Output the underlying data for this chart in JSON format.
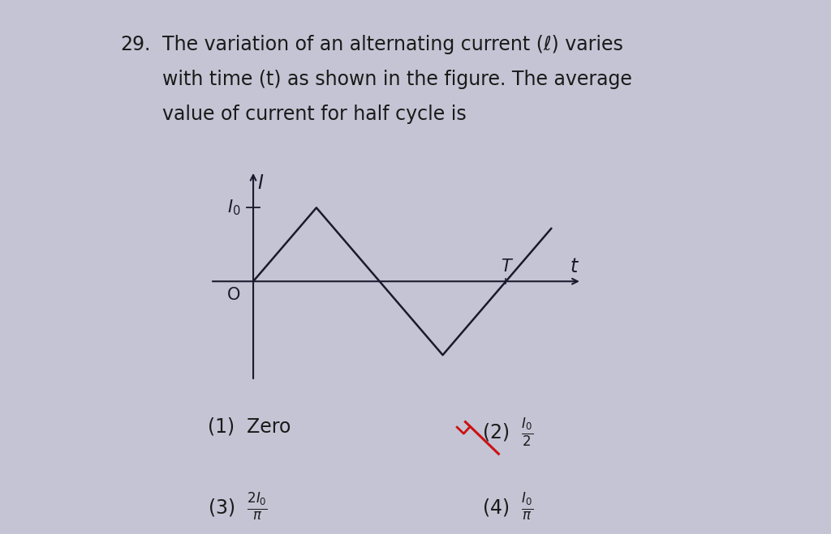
{
  "fig_bg": "#c4c4d4",
  "question_number": "29.",
  "question_text_lines": [
    "The variation of an alternating current (ℓ) varies",
    "with time (t) as shown in the figure. The average",
    "value of current for half cycle is"
  ],
  "question_font_size": 17,
  "graph": {
    "wave_color": "#1a1a2e",
    "wave_linewidth": 1.8,
    "axis_color": "#1a1a2e",
    "axis_linewidth": 1.5,
    "xlim": [
      -0.18,
      1.3
    ],
    "ylim": [
      -1.4,
      1.5
    ],
    "I0_label": "$I_0$",
    "I_label": "$I$",
    "t_label": "$t$",
    "O_label": "O",
    "T_label": "T",
    "font_size_labels": 15
  },
  "options_font_size": 17,
  "text_color": "#1a1a1a",
  "left_strip_color": "#6a8a5a",
  "red_line": [
    [
      0.572,
      0.195
    ],
    [
      0.61,
      0.145
    ]
  ]
}
